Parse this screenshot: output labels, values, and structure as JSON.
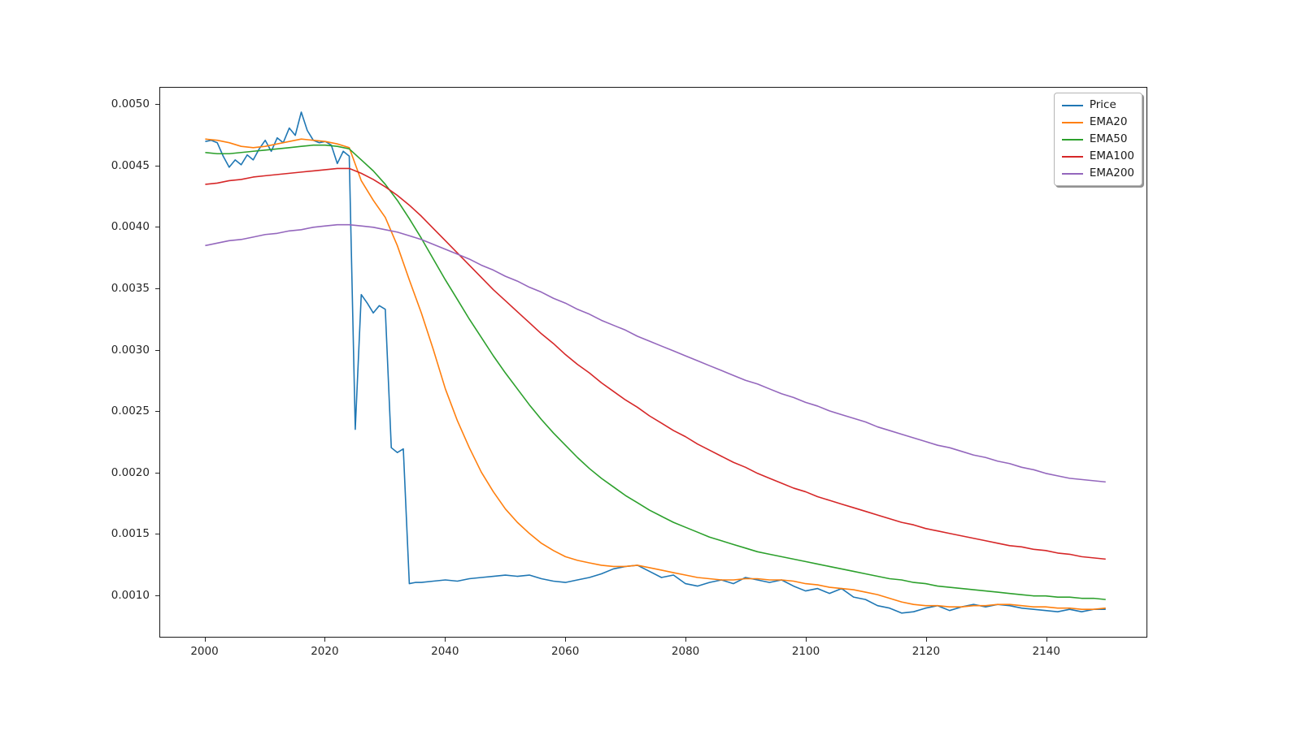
{
  "figure": {
    "background": "#ffffff"
  },
  "chart_data": {
    "type": "line",
    "title": "",
    "xlabel": "",
    "ylabel": "",
    "grid": false,
    "legend_position": "upper right",
    "xlim": [
      1992.5,
      2156.8
    ],
    "ylim": [
      0.000656,
      0.005139
    ],
    "xticks": [
      2000,
      2020,
      2040,
      2060,
      2080,
      2100,
      2120,
      2140
    ],
    "xtick_labels": [
      "2000",
      "2020",
      "2040",
      "2060",
      "2080",
      "2100",
      "2120",
      "2140"
    ],
    "yticks": [
      0.001,
      0.0015,
      0.002,
      0.0025,
      0.003,
      0.0035,
      0.004,
      0.0045,
      0.005
    ],
    "ytick_labels": [
      "0.0010",
      "0.0015",
      "0.0020",
      "0.0025",
      "0.0030",
      "0.0035",
      "0.0040",
      "0.0045",
      "0.0050"
    ],
    "x_price": [
      2000,
      2001,
      2002,
      2003,
      2004,
      2005,
      2006,
      2007,
      2008,
      2009,
      2010,
      2011,
      2012,
      2013,
      2014,
      2015,
      2016,
      2017,
      2018,
      2019,
      2020,
      2021,
      2022,
      2023,
      2024,
      2025,
      2026,
      2027,
      2028,
      2029,
      2030,
      2031,
      2032,
      2033,
      2034,
      2035,
      2036,
      2038,
      2040,
      2042,
      2044,
      2046,
      2048,
      2050,
      2052,
      2054,
      2056,
      2058,
      2060,
      2062,
      2064,
      2066,
      2068,
      2070,
      2072,
      2074,
      2076,
      2078,
      2080,
      2082,
      2084,
      2086,
      2088,
      2090,
      2092,
      2094,
      2096,
      2098,
      2100,
      2102,
      2104,
      2106,
      2108,
      2110,
      2112,
      2114,
      2116,
      2118,
      2120,
      2122,
      2124,
      2126,
      2128,
      2130,
      2132,
      2134,
      2136,
      2138,
      2140,
      2142,
      2144,
      2146,
      2148,
      2150
    ],
    "x_ema": [
      2000,
      2002,
      2004,
      2006,
      2008,
      2010,
      2012,
      2014,
      2016,
      2018,
      2020,
      2022,
      2024,
      2026,
      2028,
      2030,
      2032,
      2034,
      2036,
      2038,
      2040,
      2042,
      2044,
      2046,
      2048,
      2050,
      2052,
      2054,
      2056,
      2058,
      2060,
      2062,
      2064,
      2066,
      2068,
      2070,
      2072,
      2074,
      2076,
      2078,
      2080,
      2082,
      2084,
      2086,
      2088,
      2090,
      2092,
      2094,
      2096,
      2098,
      2100,
      2102,
      2104,
      2106,
      2108,
      2110,
      2112,
      2114,
      2116,
      2118,
      2120,
      2122,
      2124,
      2126,
      2128,
      2130,
      2132,
      2134,
      2136,
      2138,
      2140,
      2142,
      2144,
      2146,
      2148,
      2150
    ],
    "series": [
      {
        "name": "Price",
        "color": "#1f77b4",
        "x": "x_price",
        "y": [
          0.0047,
          0.00471,
          0.00469,
          0.00458,
          0.00449,
          0.00455,
          0.00451,
          0.00459,
          0.00455,
          0.00464,
          0.00471,
          0.00462,
          0.00473,
          0.00469,
          0.00481,
          0.00475,
          0.00494,
          0.00479,
          0.00471,
          0.00469,
          0.0047,
          0.00467,
          0.00452,
          0.00462,
          0.00458,
          0.00235,
          0.00345,
          0.00338,
          0.0033,
          0.00336,
          0.00333,
          0.0022,
          0.00216,
          0.00219,
          0.00109,
          0.0011,
          0.0011,
          0.00111,
          0.00112,
          0.00111,
          0.00113,
          0.00114,
          0.00115,
          0.00116,
          0.00115,
          0.00116,
          0.00113,
          0.00111,
          0.0011,
          0.00112,
          0.00114,
          0.00117,
          0.00121,
          0.00123,
          0.00124,
          0.00119,
          0.00114,
          0.00116,
          0.00109,
          0.00107,
          0.0011,
          0.00112,
          0.00109,
          0.00114,
          0.00112,
          0.0011,
          0.00112,
          0.00107,
          0.00103,
          0.00105,
          0.00101,
          0.00105,
          0.00098,
          0.00096,
          0.00091,
          0.00089,
          0.00085,
          0.00086,
          0.00089,
          0.00091,
          0.00087,
          0.0009,
          0.00092,
          0.0009,
          0.00092,
          0.00091,
          0.00089,
          0.00088,
          0.00087,
          0.00086,
          0.00088,
          0.00086,
          0.00088,
          0.00088
        ]
      },
      {
        "name": "EMA20",
        "color": "#ff7f0e",
        "x": "x_ema",
        "y": [
          0.00472,
          0.00471,
          0.00469,
          0.00466,
          0.00465,
          0.00466,
          0.00468,
          0.0047,
          0.00472,
          0.00471,
          0.0047,
          0.00468,
          0.00465,
          0.00438,
          0.00422,
          0.00408,
          0.00385,
          0.00357,
          0.0033,
          0.003,
          0.00268,
          0.00242,
          0.0022,
          0.002,
          0.00184,
          0.0017,
          0.00159,
          0.0015,
          0.00142,
          0.00136,
          0.00131,
          0.00128,
          0.00126,
          0.00124,
          0.00123,
          0.00123,
          0.00124,
          0.00122,
          0.0012,
          0.00118,
          0.00116,
          0.00114,
          0.00113,
          0.00112,
          0.00112,
          0.00113,
          0.00113,
          0.00112,
          0.00112,
          0.00111,
          0.00109,
          0.00108,
          0.00106,
          0.00105,
          0.00104,
          0.00102,
          0.001,
          0.00097,
          0.00094,
          0.00092,
          0.00091,
          0.00091,
          0.0009,
          0.0009,
          0.00091,
          0.00091,
          0.00092,
          0.00092,
          0.00091,
          0.0009,
          0.0009,
          0.00089,
          0.00089,
          0.00088,
          0.00088,
          0.00089
        ]
      },
      {
        "name": "EMA50",
        "color": "#2ca02c",
        "x": "x_ema",
        "y": [
          0.00461,
          0.0046,
          0.0046,
          0.00461,
          0.00462,
          0.00463,
          0.00464,
          0.00465,
          0.00466,
          0.00467,
          0.00467,
          0.00466,
          0.00464,
          0.00455,
          0.00446,
          0.00435,
          0.00422,
          0.00407,
          0.00391,
          0.00374,
          0.00357,
          0.00341,
          0.00325,
          0.0031,
          0.00295,
          0.00281,
          0.00268,
          0.00255,
          0.00243,
          0.00232,
          0.00222,
          0.00212,
          0.00203,
          0.00195,
          0.00188,
          0.00181,
          0.00175,
          0.00169,
          0.00164,
          0.00159,
          0.00155,
          0.00151,
          0.00147,
          0.00144,
          0.00141,
          0.00138,
          0.00135,
          0.00133,
          0.00131,
          0.00129,
          0.00127,
          0.00125,
          0.00123,
          0.00121,
          0.00119,
          0.00117,
          0.00115,
          0.00113,
          0.00112,
          0.0011,
          0.00109,
          0.00107,
          0.00106,
          0.00105,
          0.00104,
          0.00103,
          0.00102,
          0.00101,
          0.001,
          0.00099,
          0.00099,
          0.00098,
          0.00098,
          0.00097,
          0.00097,
          0.00096
        ]
      },
      {
        "name": "EMA100",
        "color": "#d62728",
        "x": "x_ema",
        "y": [
          0.00435,
          0.00436,
          0.00438,
          0.00439,
          0.00441,
          0.00442,
          0.00443,
          0.00444,
          0.00445,
          0.00446,
          0.00447,
          0.00448,
          0.00448,
          0.00444,
          0.00439,
          0.00433,
          0.00426,
          0.00418,
          0.00409,
          0.00399,
          0.00389,
          0.00379,
          0.00369,
          0.00359,
          0.00349,
          0.0034,
          0.00331,
          0.00322,
          0.00313,
          0.00305,
          0.00296,
          0.00288,
          0.00281,
          0.00273,
          0.00266,
          0.00259,
          0.00253,
          0.00246,
          0.0024,
          0.00234,
          0.00229,
          0.00223,
          0.00218,
          0.00213,
          0.00208,
          0.00204,
          0.00199,
          0.00195,
          0.00191,
          0.00187,
          0.00184,
          0.0018,
          0.00177,
          0.00174,
          0.00171,
          0.00168,
          0.00165,
          0.00162,
          0.00159,
          0.00157,
          0.00154,
          0.00152,
          0.0015,
          0.00148,
          0.00146,
          0.00144,
          0.00142,
          0.0014,
          0.00139,
          0.00137,
          0.00136,
          0.00134,
          0.00133,
          0.00131,
          0.0013,
          0.00129
        ]
      },
      {
        "name": "EMA200",
        "color": "#9467bd",
        "x": "x_ema",
        "y": [
          0.00385,
          0.00387,
          0.00389,
          0.0039,
          0.00392,
          0.00394,
          0.00395,
          0.00397,
          0.00398,
          0.004,
          0.00401,
          0.00402,
          0.00402,
          0.00401,
          0.004,
          0.00398,
          0.00396,
          0.00393,
          0.0039,
          0.00386,
          0.00382,
          0.00378,
          0.00374,
          0.00369,
          0.00365,
          0.0036,
          0.00356,
          0.00351,
          0.00347,
          0.00342,
          0.00338,
          0.00333,
          0.00329,
          0.00324,
          0.0032,
          0.00316,
          0.00311,
          0.00307,
          0.00303,
          0.00299,
          0.00295,
          0.00291,
          0.00287,
          0.00283,
          0.00279,
          0.00275,
          0.00272,
          0.00268,
          0.00264,
          0.00261,
          0.00257,
          0.00254,
          0.0025,
          0.00247,
          0.00244,
          0.00241,
          0.00237,
          0.00234,
          0.00231,
          0.00228,
          0.00225,
          0.00222,
          0.0022,
          0.00217,
          0.00214,
          0.00212,
          0.00209,
          0.00207,
          0.00204,
          0.00202,
          0.00199,
          0.00197,
          0.00195,
          0.00194,
          0.00193,
          0.00192
        ]
      }
    ]
  }
}
